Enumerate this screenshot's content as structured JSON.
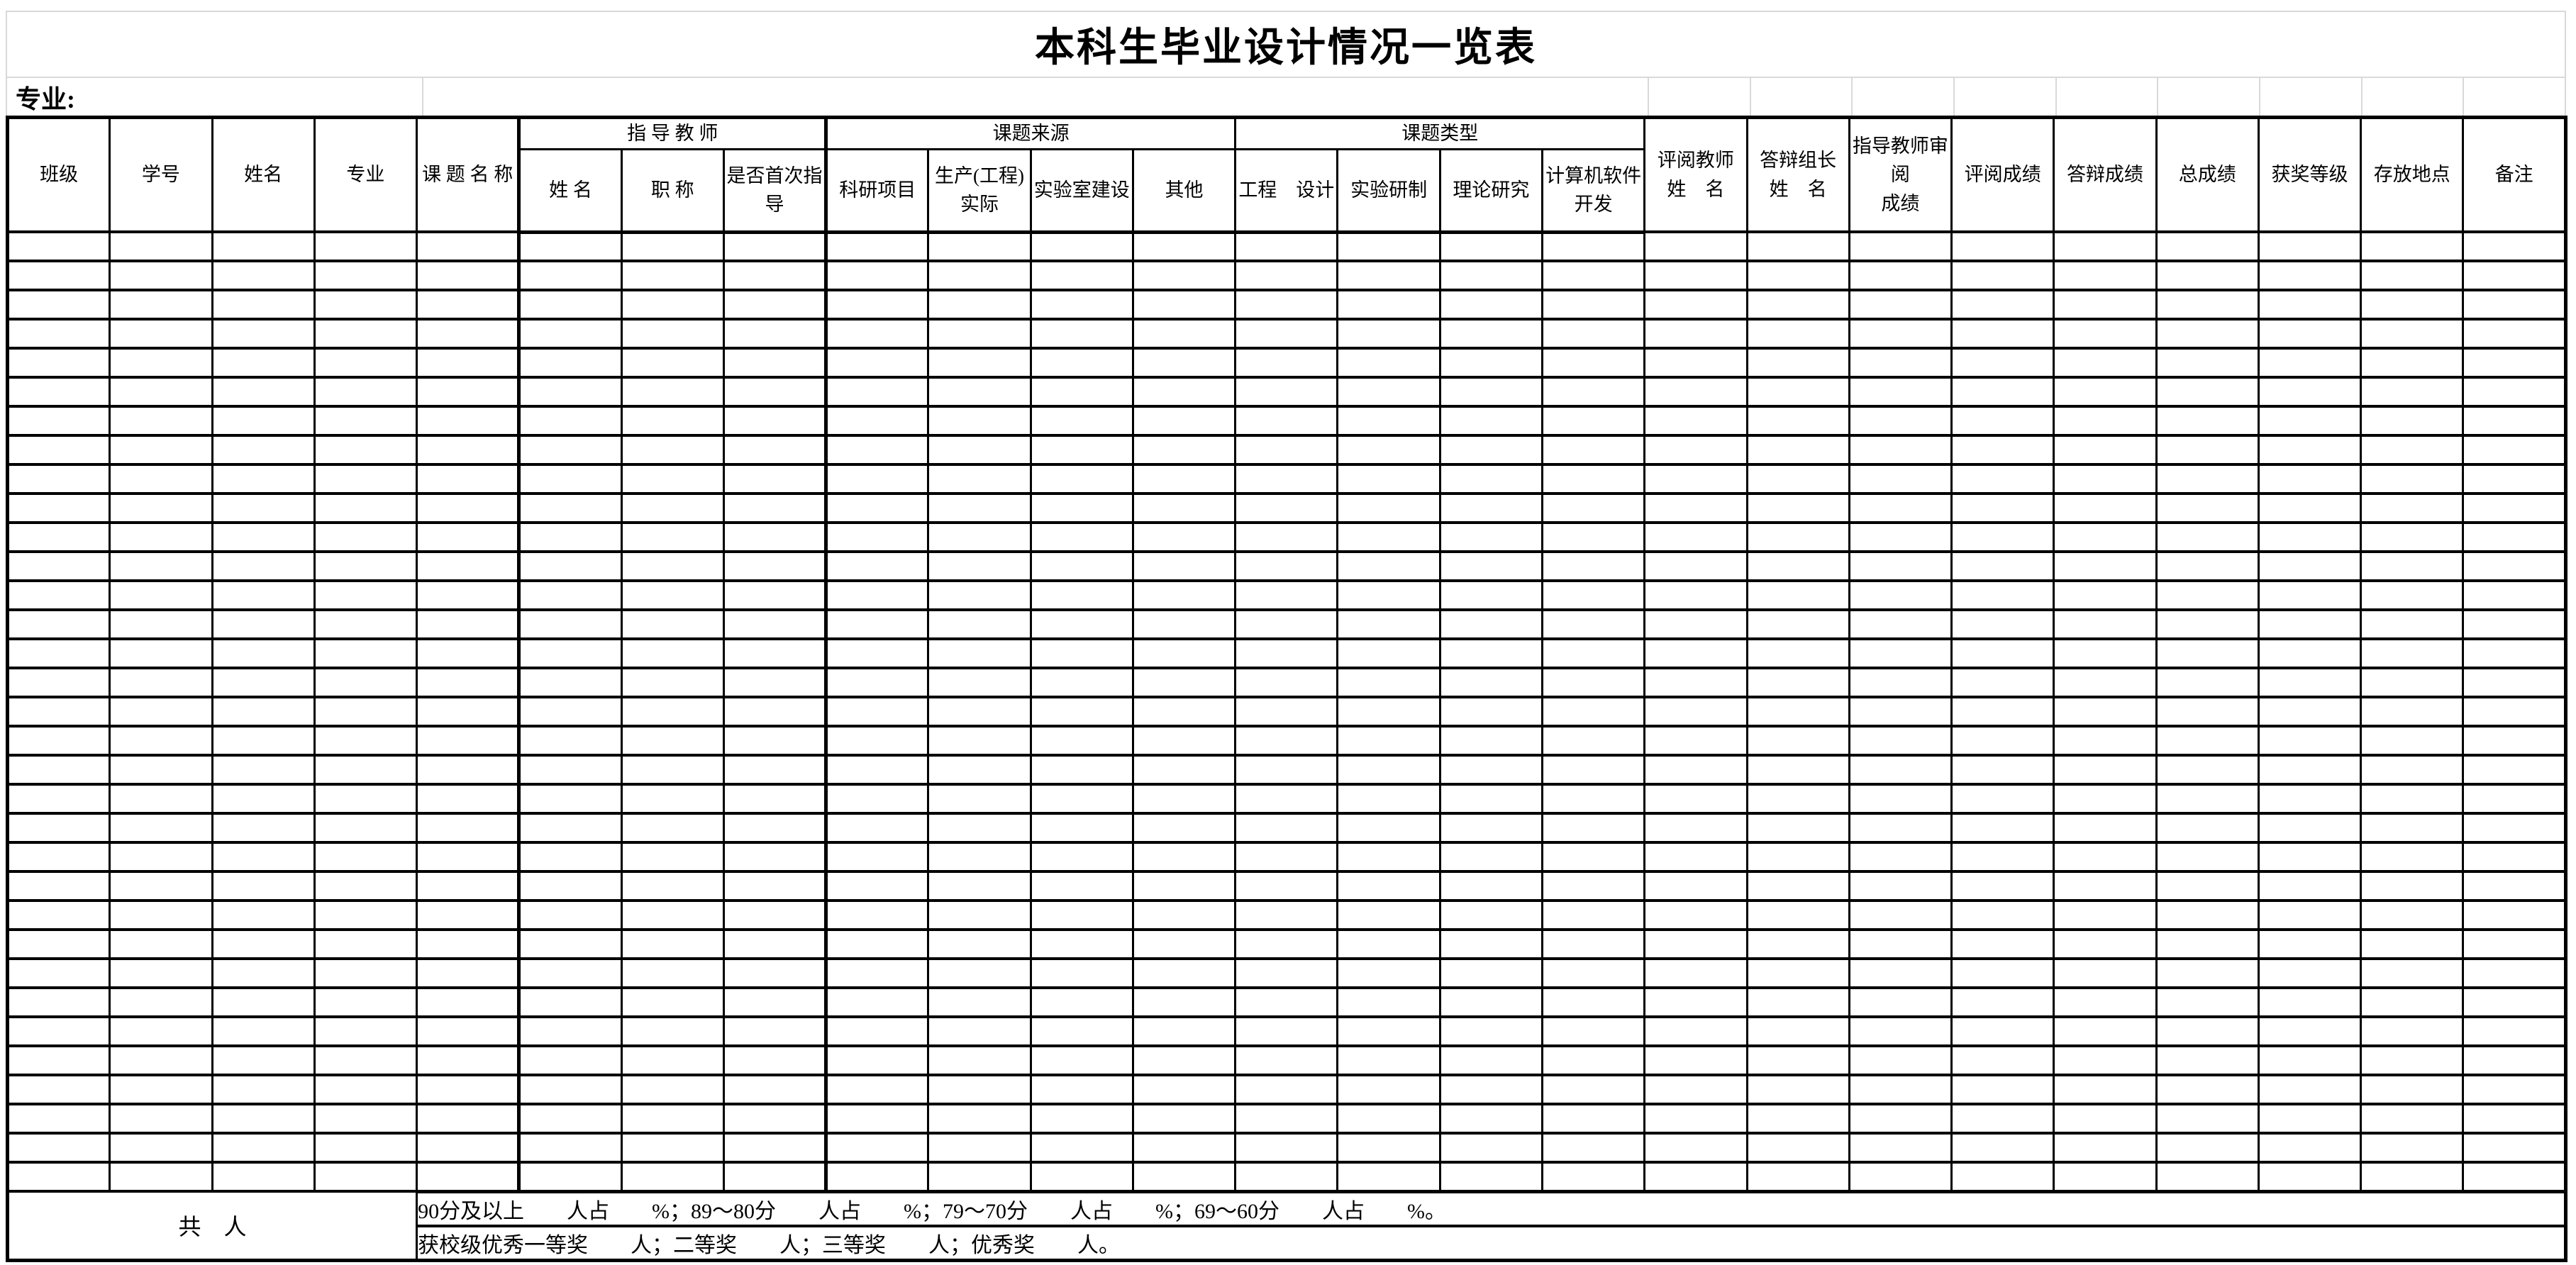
{
  "title": "本科生毕业设计情况一览表",
  "major_row": {
    "label": "专业:"
  },
  "table": {
    "column_count": 25,
    "data_row_count": 33,
    "headers_left": [
      "班级",
      "学号",
      "姓名",
      "专业",
      "课 题 名 称"
    ],
    "groups": [
      {
        "label": "指 导 教 师",
        "children": [
          "姓 名",
          "职 称",
          "是否首次指\n导"
        ]
      },
      {
        "label": "课题来源",
        "children": [
          "科研项目",
          "生产(工程)\n实际",
          "实验室建设",
          "其他"
        ]
      },
      {
        "label": "课题类型",
        "children": [
          "工程　设计",
          "实验研制",
          "理论研究",
          "计算机软件\n开发"
        ]
      }
    ],
    "headers_right": [
      "评阅教师\n姓　名",
      "答辩组长\n姓　名",
      "指导教师审\n阅\n成绩",
      "评阅成绩",
      "答辩成绩",
      "总成绩",
      "获奖等级",
      "存放地点",
      "备注"
    ]
  },
  "summary": {
    "total_label": "共　人",
    "score_distribution": "90分及以上　　人占　　%；89～80分　　人占　　%；79～70分　　人占　　%；69～60分　　人占　　%。",
    "awards": "获校级优秀一等奖　　人；二等奖　　人；三等奖　　人；优秀奖　　人。"
  }
}
